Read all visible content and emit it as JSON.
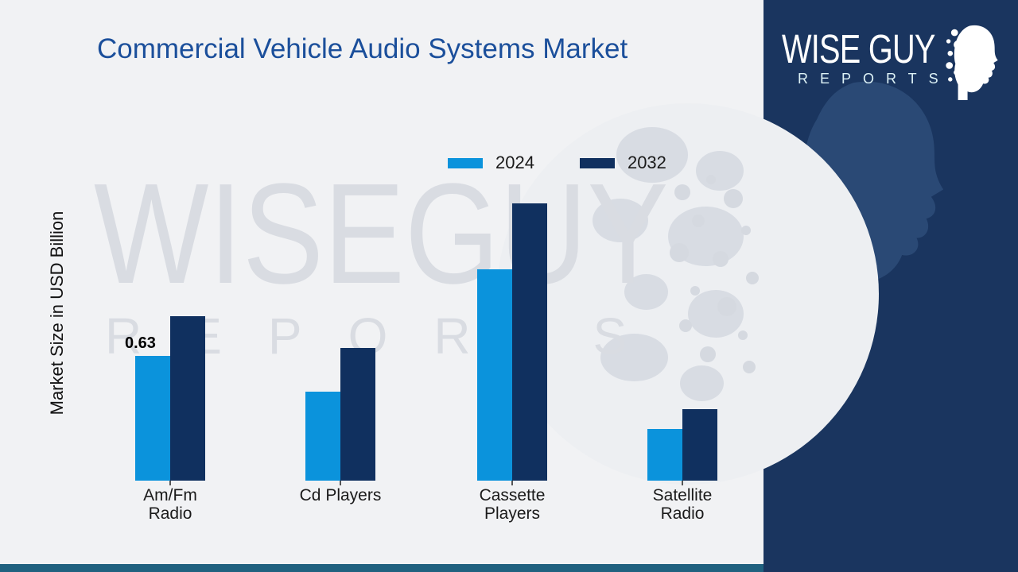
{
  "title": {
    "text": "Commercial Vehicle Audio Systems Market",
    "color": "#1b4f9b"
  },
  "y_axis": {
    "label": "Market Size in USD Billion"
  },
  "legend": {
    "position": "top-center",
    "items": [
      {
        "label": "2024",
        "color": "#0b93dc"
      },
      {
        "label": "2032",
        "color": "#10305f"
      }
    ]
  },
  "annotation": {
    "value_label": "0.63"
  },
  "categories_display": [
    "Am/Fm\nRadio",
    "Cd Players",
    "Cassette\nPlayers",
    "Satellite\nRadio"
  ],
  "logo": {
    "brand_top": "WISE GUY",
    "brand_bottom": "REPORTS"
  },
  "watermark": {
    "brand_top": "WISEGUY",
    "brand_bottom": "REPORTS"
  },
  "colors": {
    "background": "#f1f2f4",
    "panel": "#1a355f",
    "series_2024": "#0b93dc",
    "series_2032": "#10305f",
    "footer_bar": "#20617f",
    "title_blue": "#1b4f9b"
  },
  "chart_data": {
    "type": "bar",
    "categories": [
      "Am/Fm Radio",
      "Cd Players",
      "Cassette Players",
      "Satellite Radio"
    ],
    "series": [
      {
        "name": "2024",
        "color": "#0b93dc",
        "values": [
          0.63,
          0.45,
          1.07,
          0.26
        ]
      },
      {
        "name": "2032",
        "color": "#10305f",
        "values": [
          0.83,
          0.67,
          1.4,
          0.36
        ]
      }
    ],
    "title": "Commercial Vehicle Audio Systems Market",
    "xlabel": "",
    "ylabel": "Market Size in USD Billion",
    "ylim": [
      0,
      1.5
    ],
    "grid": false,
    "legend_position": "top",
    "annotations": [
      {
        "category": "Am/Fm Radio",
        "series": "2024",
        "text": "0.63"
      }
    ]
  }
}
